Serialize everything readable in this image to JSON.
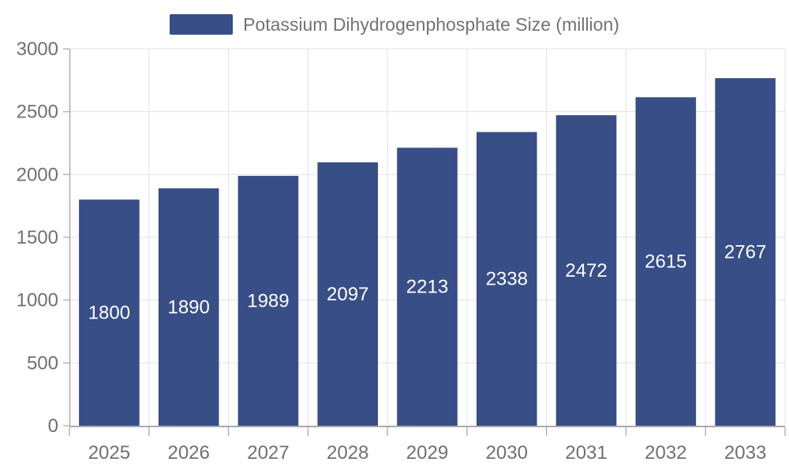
{
  "legend": {
    "label": "Potassium Dihydrogenphosphate Size (million)"
  },
  "chart_data": {
    "type": "bar",
    "title": "Potassium Dihydrogenphosphate Size (million)",
    "categories": [
      "2025",
      "2026",
      "2027",
      "2028",
      "2029",
      "2030",
      "2031",
      "2032",
      "2033"
    ],
    "values": [
      1800,
      1890,
      1989,
      2097,
      2213,
      2338,
      2472,
      2615,
      2767
    ],
    "xlabel": "",
    "ylabel": "",
    "ylim": [
      0,
      3000
    ],
    "yticks": [
      0,
      500,
      1000,
      1500,
      2000,
      2500,
      3000
    ],
    "grid": true,
    "legend_position": "top",
    "bar_value_labels_inside": true
  },
  "colors": {
    "bar": "#374e87",
    "bar_value_label": "#ffffff",
    "axis_label": "#707070",
    "legend_text": "#737373",
    "gridline": "#e2e2e2",
    "axis_line": "#aaaaaa",
    "tick": "#b5b5b5",
    "background": "#ffffff"
  }
}
